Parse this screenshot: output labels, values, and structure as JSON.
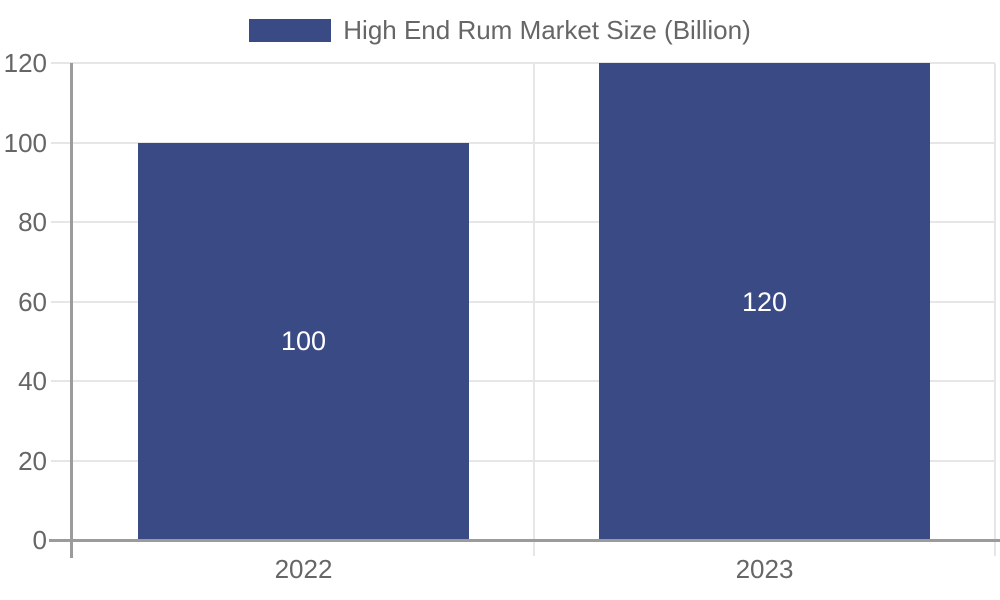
{
  "chart_data": {
    "type": "bar",
    "legend_label": "High End Rum Market Size (Billion)",
    "series": [
      {
        "name": "High End Rum Market Size (Billion)",
        "values": [
          100,
          120
        ]
      }
    ],
    "categories": [
      "2022",
      "2023"
    ],
    "data_labels": [
      "100",
      "120"
    ],
    "ylim": [
      0,
      120
    ],
    "yticks": [
      0,
      20,
      40,
      60,
      80,
      100,
      120
    ],
    "grid": true,
    "legend_position": "top-center",
    "colors": {
      "bar": "#3A4A85",
      "grid": "#E6E6E6",
      "axis": "#9B9B9B",
      "tick_label": "#666666",
      "data_label": "#FFFFFF",
      "background": "#FFFFFF"
    }
  }
}
